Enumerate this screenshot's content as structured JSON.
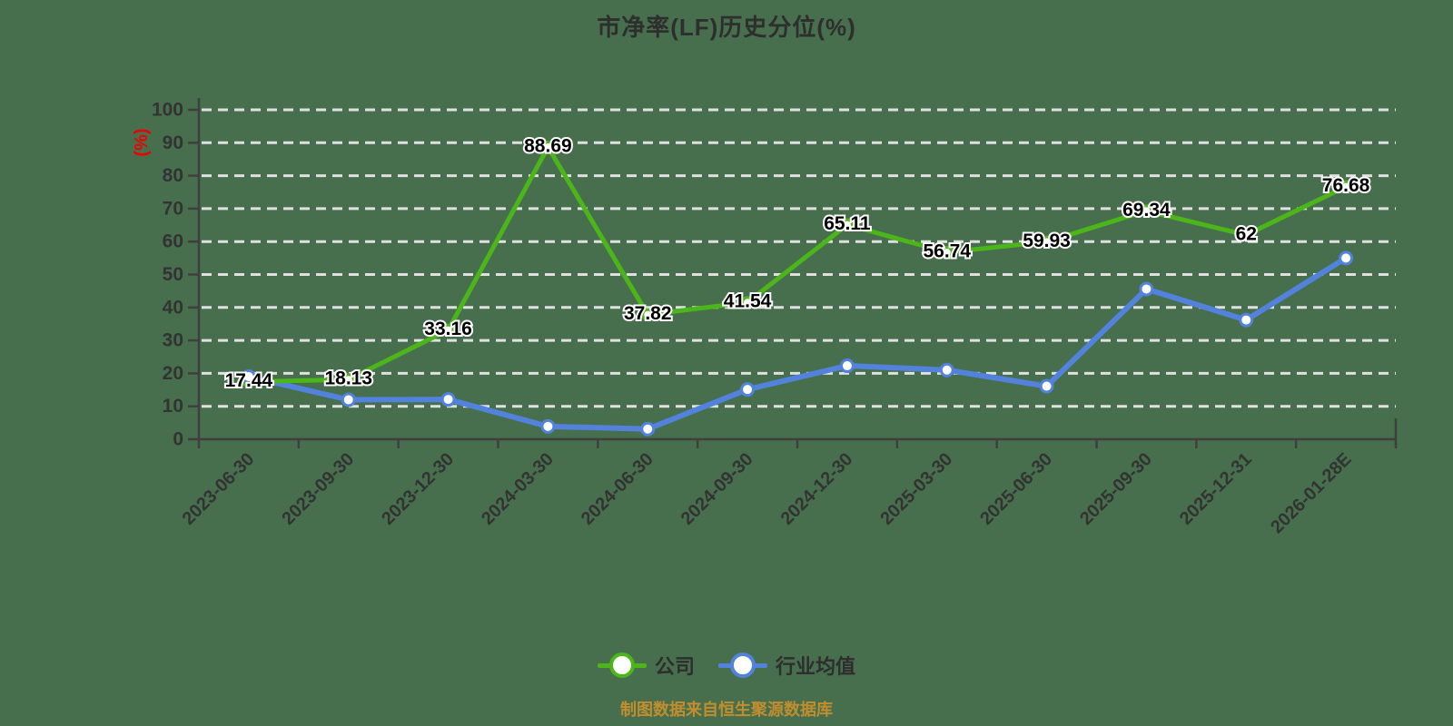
{
  "title": "市净率(LF)历史分位(%)",
  "footer": "制图数据来自恒生聚源数据库",
  "colors": {
    "background": "#476F4E",
    "company": "#4CB51A",
    "industry": "#5282DC",
    "grid": "#E0E0E0",
    "axis": "#3F3F3F",
    "tick_label": "#333333",
    "title_text": "#2E2E2E",
    "footer_text": "#C28E2D",
    "axis_name": "#EC0000",
    "marker_fill": "#FFFFFF",
    "data_label": "#000000",
    "data_label_halo": "#FFFFFF"
  },
  "chart_data": {
    "type": "line",
    "title": "市净率(LF)历史分位(%)",
    "categories": [
      "2023-06-30",
      "2023-09-30",
      "2023-12-30",
      "2024-03-30",
      "2024-06-30",
      "2024-09-30",
      "2024-12-30",
      "2025-03-30",
      "2025-06-30",
      "2025-09-30",
      "2025-12-31",
      "2026-01-28E"
    ],
    "series": [
      {
        "name": "公司",
        "color_key": "company",
        "show_labels": true,
        "values": [
          17.44,
          18.13,
          33.16,
          88.69,
          37.82,
          41.54,
          65.11,
          56.74,
          59.93,
          69.34,
          62,
          76.68
        ]
      },
      {
        "name": "行业均值",
        "color_key": "industry",
        "show_labels": false,
        "values": [
          19,
          12,
          12.1,
          3.9,
          3.1,
          15.1,
          22.3,
          21,
          16.1,
          45.6,
          36.2,
          55
        ]
      }
    ],
    "xlabel": "",
    "ylabel": "(%)",
    "ylim": [
      0,
      100
    ],
    "y_ticks": [
      0,
      10,
      20,
      30,
      40,
      50,
      60,
      70,
      80,
      90,
      100
    ],
    "grid": "horizontal-dashed",
    "legend_position": "bottom"
  }
}
